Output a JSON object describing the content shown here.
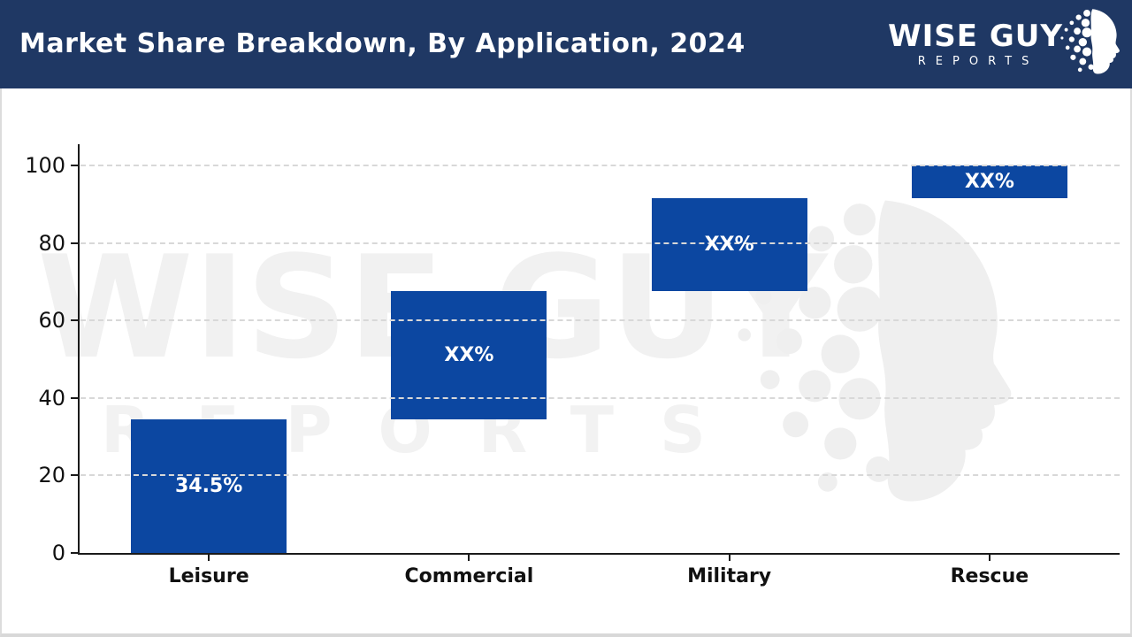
{
  "header": {
    "title": "Market Share Breakdown, By Application, 2024",
    "logo": {
      "line1": "WISE GUY",
      "line2": "REPORTS"
    }
  },
  "watermark": {
    "line1": "WISE GUY",
    "line2": "REPORTS"
  },
  "chart_data": {
    "type": "bar",
    "subtype": "waterfall",
    "title": "Market Share Breakdown, By Application, 2024",
    "categories": [
      "Leisure",
      "Commercial",
      "Military",
      "Rescue"
    ],
    "segments": [
      {
        "category": "Leisure",
        "start": 0,
        "end": 34.5,
        "label": "34.5%"
      },
      {
        "category": "Commercial",
        "start": 34.5,
        "end": 67.5,
        "label": "XX%"
      },
      {
        "category": "Military",
        "start": 67.5,
        "end": 91.5,
        "label": "XX%"
      },
      {
        "category": "Rescue",
        "start": 91.5,
        "end": 100,
        "label": "XX%"
      }
    ],
    "yticks": [
      0,
      20,
      40,
      60,
      80,
      100
    ],
    "ylim": [
      0,
      105.5
    ],
    "xlabel": "",
    "ylabel": "",
    "grid": "horizontal dashed, drawn over bars",
    "legend": "none",
    "bar_color": "#0c47a1"
  },
  "colors": {
    "header_bg": "#1f3864",
    "bar": "#0c47a1",
    "grid": "#d8d8d8",
    "axis": "#1a1a1a",
    "bar_label_text": "#ffffff",
    "tick_label_text": "#111111",
    "watermark": "#f1f1f1",
    "panel_border": "#dcdcdc"
  }
}
